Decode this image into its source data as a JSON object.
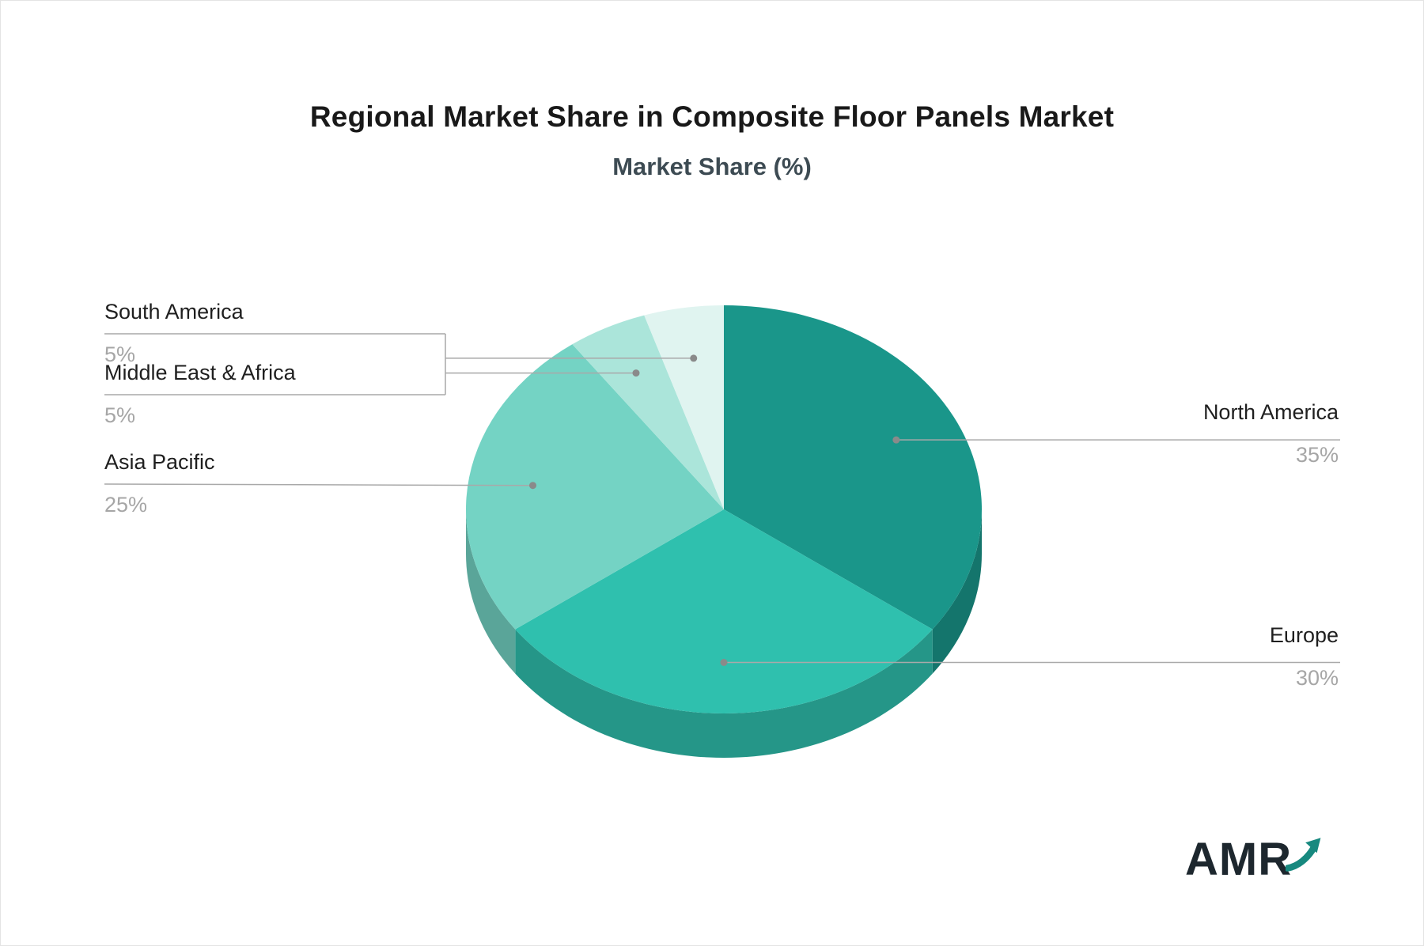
{
  "chart_data": {
    "type": "pie",
    "title": "Regional Market Share in Composite Floor Panels Market",
    "subtitle": "Market Share (%)",
    "unit": "%",
    "effect": "3d",
    "legend_position": "none",
    "slices": [
      {
        "label": "North America",
        "value": 35,
        "pct_label": "35%",
        "color": "#1a968a"
      },
      {
        "label": "Europe",
        "value": 30,
        "pct_label": "30%",
        "color": "#2fc0ae"
      },
      {
        "label": "Asia Pacific",
        "value": 25,
        "pct_label": "25%",
        "color": "#74d3c4"
      },
      {
        "label": "Middle East & Africa",
        "value": 5,
        "pct_label": "5%",
        "color": "#abe5da"
      },
      {
        "label": "South America",
        "value": 5,
        "pct_label": "5%",
        "color": "#e0f4f0"
      }
    ]
  },
  "branding": {
    "logo_text": "AMR"
  },
  "colors": {
    "leader_line": "#a9a9a9",
    "leader_dot": "#8a8a8a",
    "label_text": "#1f1f1f",
    "pct_text": "#a6a6a6",
    "title_text": "#191919",
    "subtitle_text": "#3d4b53",
    "logo_text": "#1d272e",
    "logo_arrow": "#17897f",
    "background": "#ffffff"
  }
}
